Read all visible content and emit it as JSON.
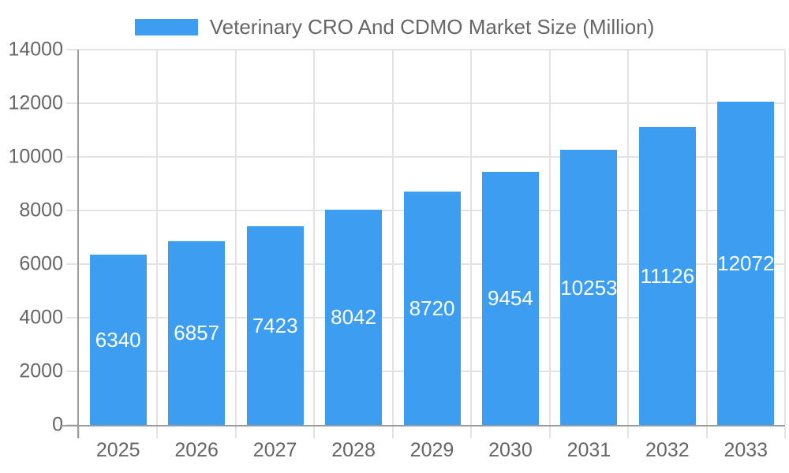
{
  "chart_data": {
    "type": "bar",
    "title": "Veterinary CRO And CDMO Market Size (Million)",
    "legend": [
      "Veterinary CRO And CDMO Market Size (Million)"
    ],
    "legend_position": "top",
    "categories": [
      "2025",
      "2026",
      "2027",
      "2028",
      "2029",
      "2030",
      "2031",
      "2032",
      "2033"
    ],
    "values": [
      6340,
      6857,
      7423,
      8042,
      8720,
      9454,
      10253,
      11126,
      12072
    ],
    "value_labels": [
      "6340",
      "6857",
      "7423",
      "8042",
      "8720",
      "9454",
      "10253",
      "11126",
      "12072"
    ],
    "y_tick_labels": [
      "0",
      "2000",
      "4000",
      "6000",
      "8000",
      "10000",
      "12000",
      "14000"
    ],
    "ylim": [
      0,
      14000
    ],
    "ytick_step": 2000,
    "grid": true,
    "xlabel": "",
    "ylabel": "",
    "colors": {
      "bar": "#3C9DF1",
      "value_label": "#ffffff",
      "tick_label": "#666666",
      "legend_text": "#666666",
      "gridline": "#e3e3e3",
      "axis_border": "#9b9b9b",
      "background": "#ffffff"
    }
  }
}
